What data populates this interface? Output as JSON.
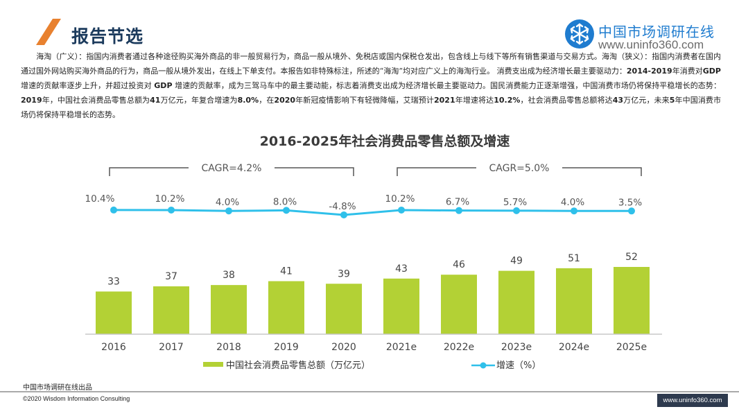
{
  "header": {
    "title": "报告节选",
    "accent_color": "#e8812f",
    "title_color": "#1b3a5c"
  },
  "logo": {
    "icon": "snowflake-emblem-icon",
    "name_cn": "中国市场调研在线",
    "url": "www.uninfo360.com",
    "color": "#1f7ccf"
  },
  "intro": {
    "segments": [
      {
        "t": "　　海淘（广义）：指国内消费者通过各种途径购买海外商品的非一般贸易行为，商品一般从境外、免税店或国内保税仓发出，包含线上与线下等所有销售渠道与交易方式。海淘（狭义）：指国内消费者在国内通过国外网站购买海外商品的行为，商品一般从境外发出，在线上下单支付。本报告如非特殊标注，所述的“海淘”均对应广义上的海淘行业。 消费支出成为经济增长最主要驱动力：",
        "b": false
      },
      {
        "t": "2014-2019",
        "b": true
      },
      {
        "t": "年消费对",
        "b": false
      },
      {
        "t": "GDP",
        "b": true
      },
      {
        "t": "增速的贡献率逐步上升，并超过投资对 ",
        "b": false
      },
      {
        "t": "GDP",
        "b": true
      },
      {
        "t": " 增速的贡献率，成为三驾马车中的最主要动能，标志着消费支出成为经济增长最主要驱动力。国民消费能力正逐渐增强，中国消费市场仍将保持平稳增长的态势：",
        "b": false
      },
      {
        "t": "2019",
        "b": true
      },
      {
        "t": "年，中国社会消费品零售总额为",
        "b": false
      },
      {
        "t": "41",
        "b": true
      },
      {
        "t": "万亿元，年复合增速为",
        "b": false
      },
      {
        "t": "8.0%",
        "b": true
      },
      {
        "t": "，在",
        "b": false
      },
      {
        "t": "2020",
        "b": true
      },
      {
        "t": "年新冠疫情影响下有轻微降幅，艾瑞预计",
        "b": false
      },
      {
        "t": "2021",
        "b": true
      },
      {
        "t": "年增速将达",
        "b": false
      },
      {
        "t": "10.2%",
        "b": true
      },
      {
        "t": "，社会消费品零售总额将达",
        "b": false
      },
      {
        "t": "43",
        "b": true
      },
      {
        "t": "万亿元，未来",
        "b": false
      },
      {
        "t": "5",
        "b": true
      },
      {
        "t": "年中国消费市场仍将保持平稳增长的态势。",
        "b": false
      }
    ]
  },
  "chart_data": {
    "type": "bar",
    "title": "2016-2025年社会消费品零售总额及增速",
    "categories": [
      "2016",
      "2017",
      "2018",
      "2019",
      "2020",
      "2021e",
      "2022e",
      "2023e",
      "2024e",
      "2025e"
    ],
    "series": [
      {
        "name": "中国社会消费品零售总额（万亿元）",
        "type": "bar",
        "color": "#b3d135",
        "values": [
          33,
          37,
          38,
          41,
          39,
          43,
          46,
          49,
          51,
          52
        ],
        "labels": [
          "33",
          "37",
          "38",
          "41",
          "39",
          "43",
          "46",
          "49",
          "51",
          "52"
        ]
      },
      {
        "name": "增速（%）",
        "type": "line",
        "color": "#2fc0ea",
        "values": [
          10.4,
          10.2,
          4.0,
          8.0,
          -4.8,
          10.2,
          6.7,
          5.7,
          4.0,
          3.5
        ],
        "labels": [
          "10.4%",
          "10.2%",
          "4.0%",
          "8.0%",
          "-4.8%",
          "10.2%",
          "6.7%",
          "5.7%",
          "4.0%",
          "3.5%"
        ]
      }
    ],
    "annotations": [
      {
        "label": "CAGR=4.2%",
        "from": "2016",
        "to": "2020"
      },
      {
        "label": "CAGR=5.0%",
        "from": "2021e",
        "to": "2025e"
      }
    ],
    "xlabel": "",
    "ylabel": "",
    "ylim": [
      0,
      60
    ],
    "grid": false,
    "legend": "bottom",
    "legend_labels": [
      "中国社会消费品零售总额（万亿元）",
      "增速（%）"
    ]
  },
  "footer": {
    "brand": "中国市场调研在线出品",
    "copyright": "©2020 Wisdom Information Consulting",
    "url": "www.uninfo360.com"
  }
}
